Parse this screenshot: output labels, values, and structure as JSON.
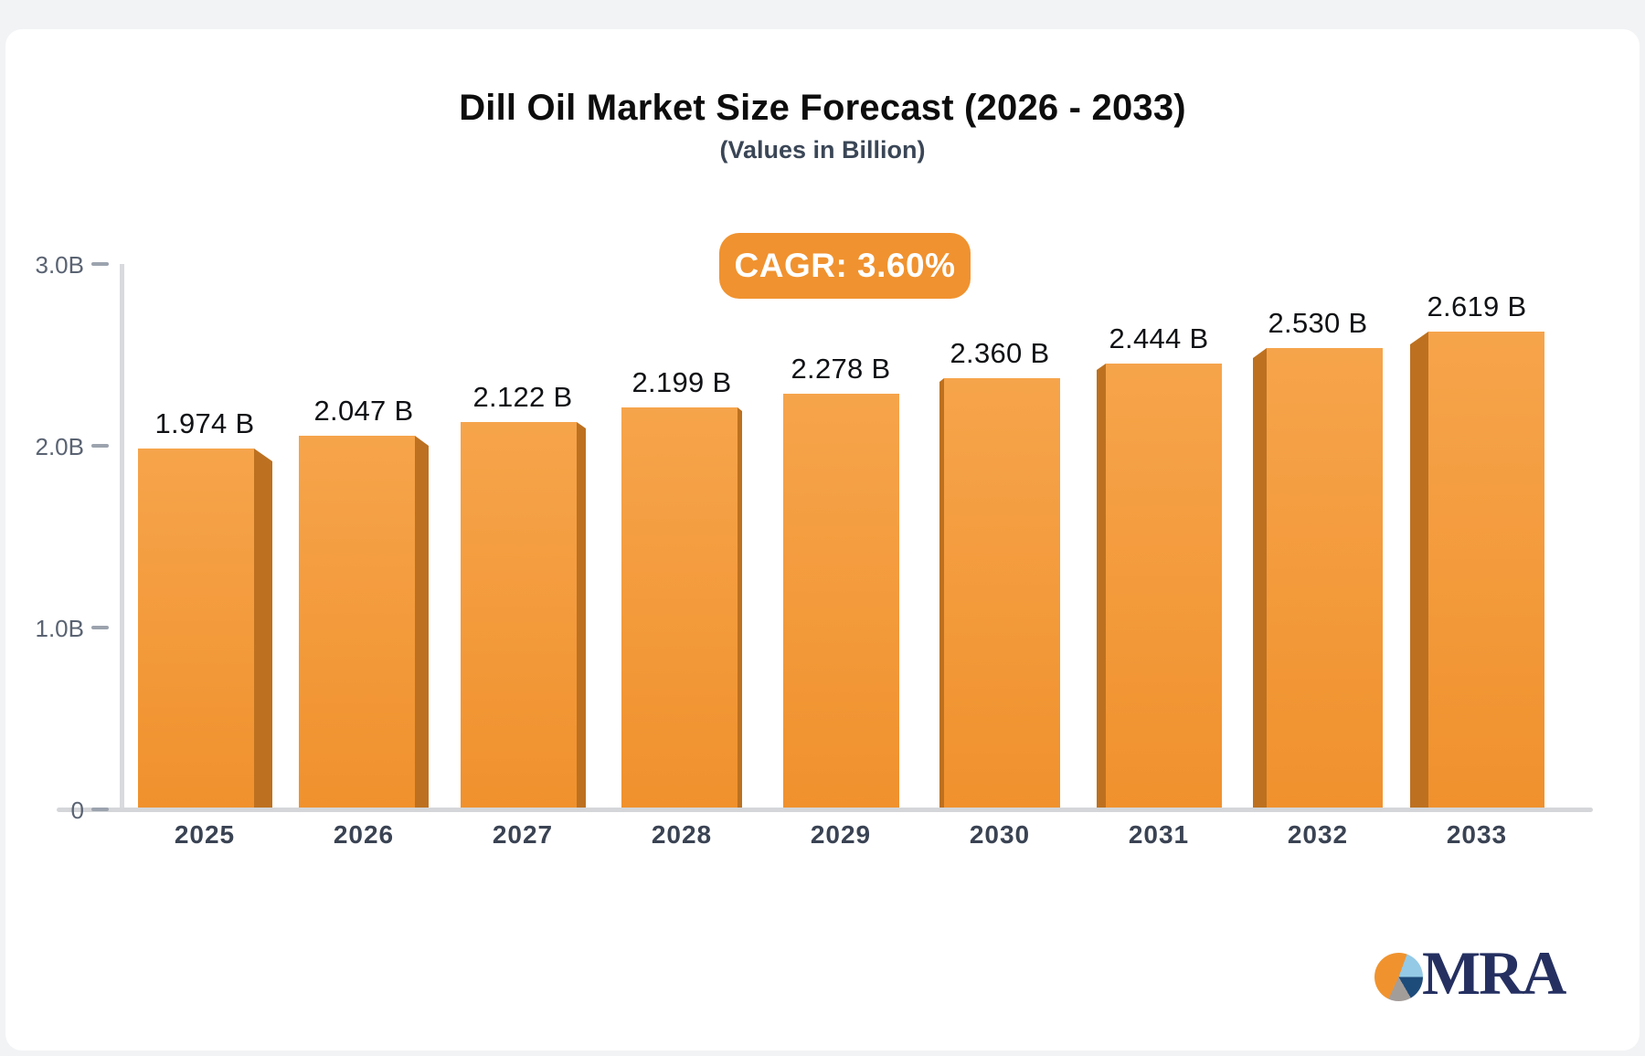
{
  "header": {
    "title": "Dill Oil Market Size Forecast (2026 - 2033)",
    "subtitle": "(Values in Billion)",
    "cagr_label": "CAGR: 3.60%"
  },
  "chart_data": {
    "type": "bar",
    "title": "Dill Oil Market Size Forecast (2026 - 2033)",
    "subtitle": "(Values in Billion)",
    "annotation": "CAGR: 3.60%",
    "categories": [
      "2025",
      "2026",
      "2027",
      "2028",
      "2029",
      "2030",
      "2031",
      "2032",
      "2033"
    ],
    "values": [
      1.974,
      2.047,
      2.122,
      2.199,
      2.278,
      2.36,
      2.444,
      2.53,
      2.619
    ],
    "value_labels": [
      "1.974 B",
      "2.047 B",
      "2.122 B",
      "2.199 B",
      "2.278 B",
      "2.360 B",
      "2.444 B",
      "2.530 B",
      "2.619 B"
    ],
    "unit": "Billion",
    "ylim": [
      0,
      3.0
    ],
    "yticks": [
      {
        "value": 3.0,
        "label": "3.0B"
      },
      {
        "value": 2.0,
        "label": "2.0B"
      },
      {
        "value": 1.0,
        "label": "1.0B"
      },
      {
        "value": 0,
        "label": "0"
      }
    ],
    "grid": false,
    "legend": false,
    "bar_style": "3d-bevel",
    "colors": {
      "bar_top": "#f6a44b",
      "bar_bottom": "#f0912d",
      "bar_side": "#bd7120",
      "badge_background": "#f0922f",
      "badge_text": "#ffffff",
      "axis": "#d8dadd",
      "tick_dash": "#9ca3ae",
      "ytick_text": "#5a6372",
      "xtick_text": "#3a4353",
      "value_text": "#101215",
      "title_text": "#0d0d0d",
      "subtitle_text": "#3a4656"
    }
  },
  "logo": {
    "text": "MRA",
    "icon": "pie-chart-logo-icon",
    "colors": {
      "text": "#253061",
      "pie_orange": "#f0932e",
      "pie_light_blue": "#94cae6",
      "pie_navy": "#1e4c7a",
      "pie_gray": "#a39d9a"
    }
  }
}
